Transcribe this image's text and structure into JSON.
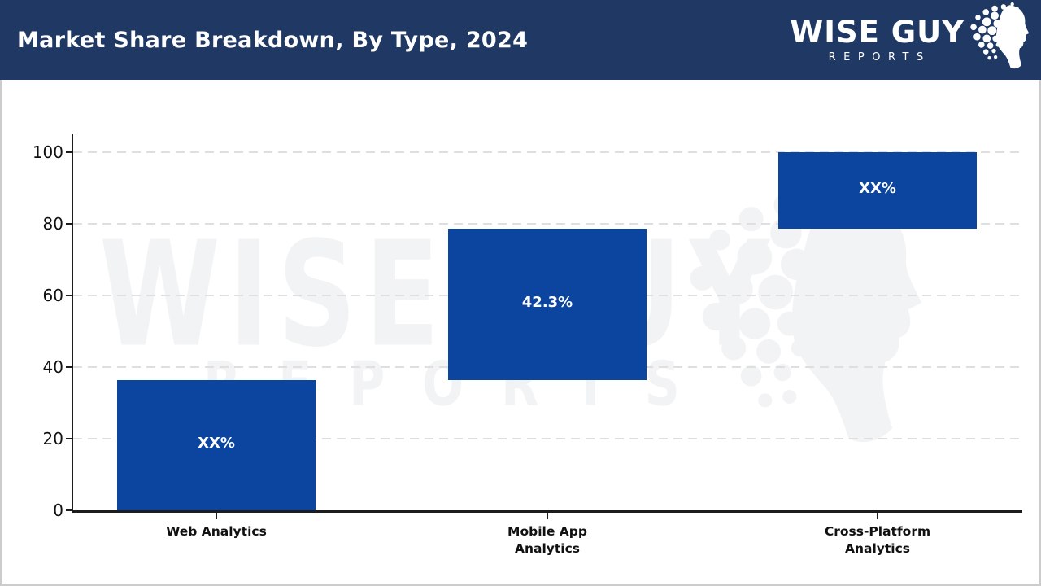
{
  "header": {
    "title": "Market Share Breakdown, By Type, 2024",
    "logo": {
      "line1": "WISE GUY",
      "line2": "REPORTS"
    }
  },
  "watermark": {
    "line1": "WISE GUY",
    "line2": "REPORTS"
  },
  "colors": {
    "header_bg": "#1f3864",
    "bar": "#0b45a0",
    "grid": "#dfdfdf",
    "axis": "#1c1c1c",
    "watermark": "#f2f3f5",
    "bar_label": "#ffffff"
  },
  "chart_data": {
    "type": "bar",
    "subtype": "waterfall",
    "title": "Market Share Breakdown, By Type, 2024",
    "categories": [
      [
        "Web Analytics"
      ],
      [
        "Mobile App",
        "Analytics"
      ],
      [
        "Cross-Platform",
        "Analytics"
      ]
    ],
    "segments": [
      {
        "category": "Web Analytics",
        "start": 0,
        "value": 36.4,
        "label": "XX%"
      },
      {
        "category": "Mobile App Analytics",
        "start": 36.4,
        "value": 42.3,
        "label": "42.3%"
      },
      {
        "category": "Cross-Platform Analytics",
        "start": 78.7,
        "value": 21.3,
        "label": "XX%"
      }
    ],
    "ylim": [
      0,
      100
    ],
    "yticks": [
      0,
      20,
      40,
      60,
      80,
      100
    ],
    "grid": "horizontal-dashed",
    "legend": "none"
  }
}
